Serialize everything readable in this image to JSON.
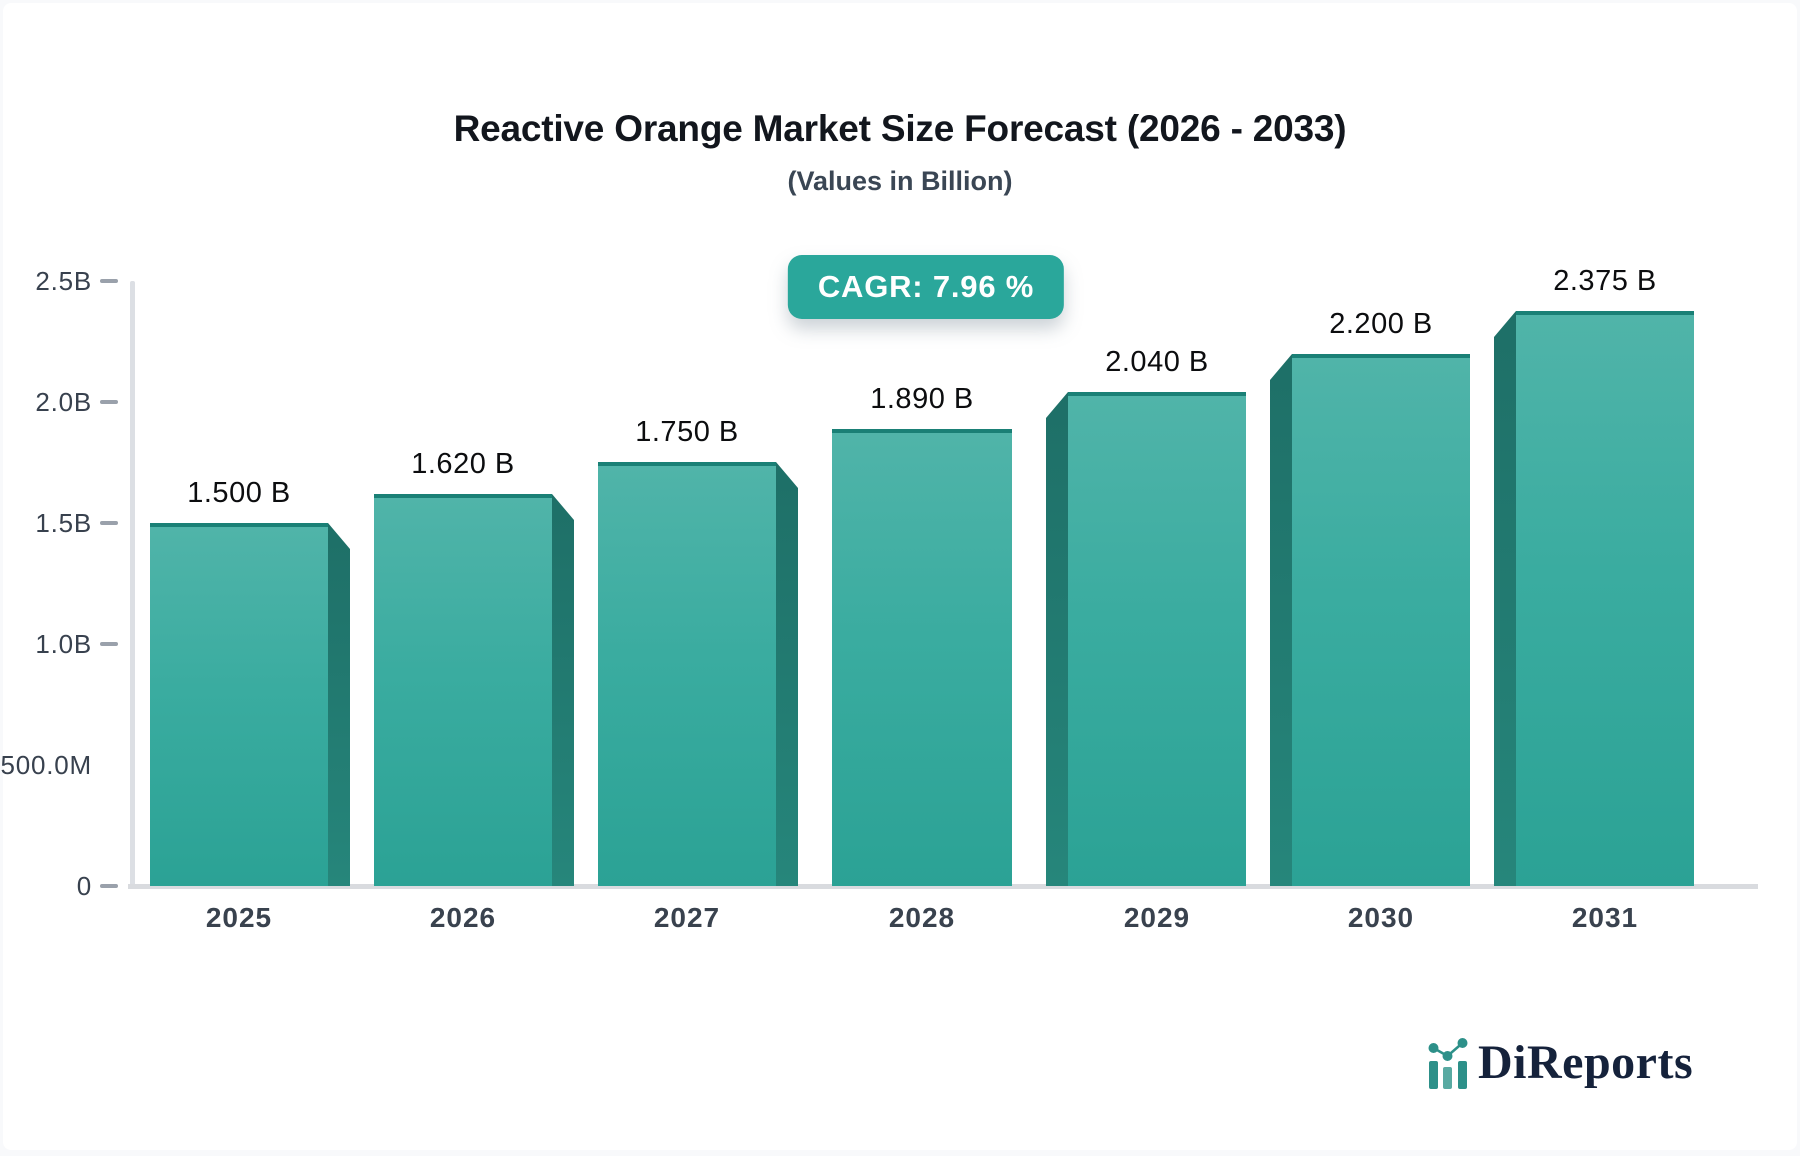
{
  "page": {
    "background": "#f8f9fb",
    "card_background": "#ffffff"
  },
  "header": {
    "title": "Reactive Orange Market Size Forecast (2026 - 2033)",
    "subtitle": "(Values in Billion)"
  },
  "badge": {
    "label": "CAGR: 7.96 %",
    "background": "#2aa79b",
    "text_color": "#ffffff"
  },
  "chart_data": {
    "type": "bar",
    "title": "Reactive Orange Market Size Forecast (2026 - 2033)",
    "subtitle": "(Values in Billion)",
    "unit": "Billion",
    "cagr_percent": 7.96,
    "categories": [
      "2025",
      "2026",
      "2027",
      "2028",
      "2029",
      "2030",
      "2031"
    ],
    "values": [
      1.5,
      1.62,
      1.75,
      1.89,
      2.04,
      2.2,
      2.375
    ],
    "data_labels": [
      "1.500 B",
      "1.620 B",
      "1.750 B",
      "1.890 B",
      "2.040 B",
      "2.200 B",
      "2.375 B"
    ],
    "ylim": [
      0,
      2.5
    ],
    "y_ticks": [
      {
        "label": "2.5B",
        "value": 2.5,
        "dash": true
      },
      {
        "label": "2.0B",
        "value": 2.0,
        "dash": true
      },
      {
        "label": "1.5B",
        "value": 1.5,
        "dash": true
      },
      {
        "label": "1.0B",
        "value": 1.0,
        "dash": true
      },
      {
        "label": "500.0M",
        "value": 0.5,
        "dash": false
      },
      {
        "label": "0",
        "value": 0.0,
        "dash": true
      }
    ],
    "grid": false,
    "legend": false,
    "bar_colors": {
      "face_top": "#50b4a9",
      "face_bottom": "#2ba295",
      "side": "#1f776e",
      "top_edge": "#1a8076"
    }
  },
  "logo": {
    "text": "DiReports",
    "icon": "bar-chart-logo-icon",
    "text_color": "#15223b",
    "accent": "#2d9089"
  }
}
